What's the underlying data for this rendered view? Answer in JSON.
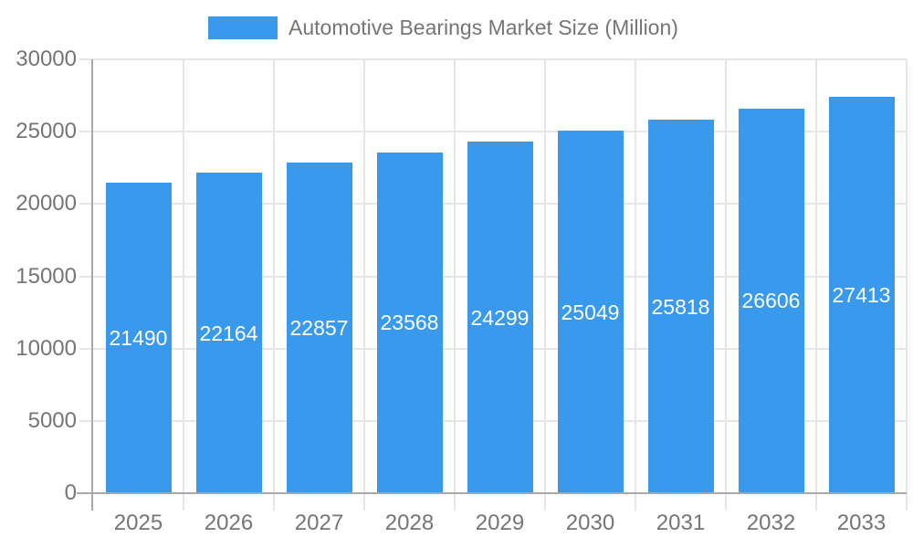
{
  "legend": {
    "label": "Automotive Bearings Market Size (Million)"
  },
  "chart_data": {
    "type": "bar",
    "title": "Automotive Bearings Market Size (Million)",
    "categories": [
      "2025",
      "2026",
      "2027",
      "2028",
      "2029",
      "2030",
      "2031",
      "2032",
      "2033"
    ],
    "values": [
      21490,
      22164,
      22857,
      23568,
      24299,
      25049,
      25818,
      26606,
      27413
    ],
    "series": [
      {
        "name": "Automotive Bearings Market Size (Million)",
        "values": [
          21490,
          22164,
          22857,
          23568,
          24299,
          25049,
          25818,
          26606,
          27413
        ]
      }
    ],
    "xlabel": "",
    "ylabel": "",
    "ylim": [
      0,
      30000
    ],
    "yticks": [
      0,
      5000,
      10000,
      15000,
      20000,
      25000,
      30000
    ],
    "grid": true,
    "legend_position": "top-center",
    "bar_value_labels": true,
    "colors": {
      "bar": "#3999EC",
      "grid": "#E6E6E6",
      "axis": "#A9A9A9",
      "axis_label": "#757575",
      "bar_label": "#FFFFFF",
      "background": "#FFFFFF"
    }
  }
}
